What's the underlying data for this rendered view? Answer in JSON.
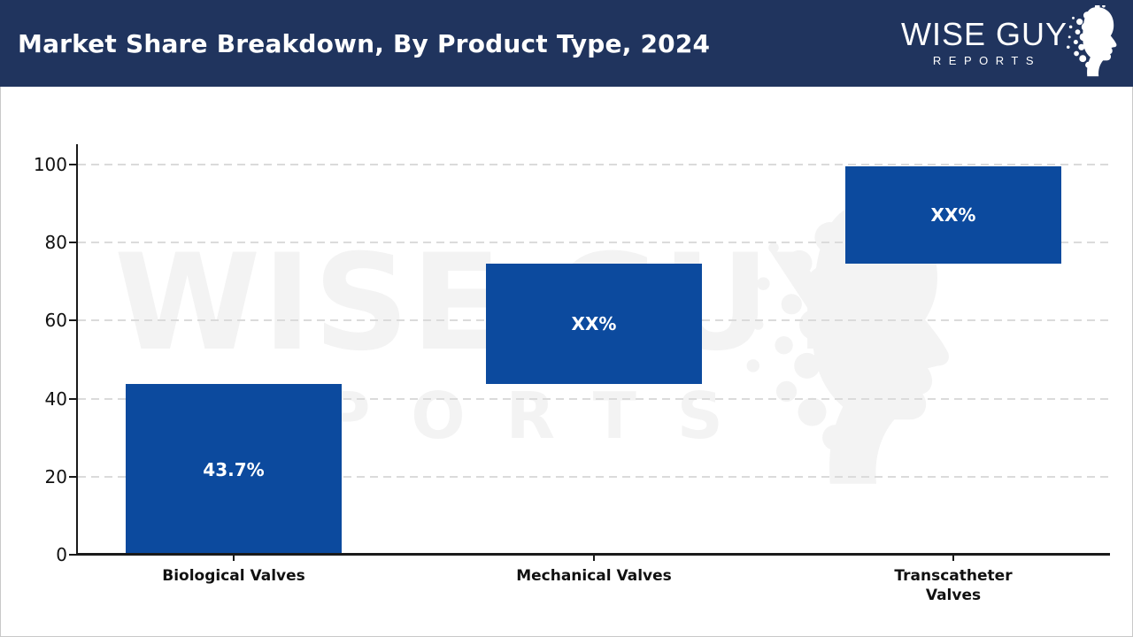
{
  "header": {
    "title": "Market Share Breakdown, By Product Type, 2024",
    "bg_color": "#20345E",
    "logo": {
      "line1": "WISE GUY",
      "line2": "REPORTS"
    }
  },
  "watermark": {
    "line1": "WISE GUY",
    "line2": "REPORTS",
    "color": "#f3f3f3"
  },
  "chart_data": {
    "type": "bar",
    "subtype": "floating-segment-waterfall",
    "title": "Market Share Breakdown, By Product Type, 2024",
    "categories": [
      "Biological Valves",
      "Mechanical Valves",
      "Transcatheter Valves"
    ],
    "xtick_labels": [
      "Biological Valves",
      "Mechanical Valves",
      "Transcatheter\nValves"
    ],
    "series": [
      {
        "name": "Market share (%)",
        "segments": [
          {
            "category": "Biological Valves",
            "start": 0,
            "end": 43.7,
            "label": "43.7%"
          },
          {
            "category": "Mechanical Valves",
            "start": 43.7,
            "end": 74.7,
            "label": "XX%"
          },
          {
            "category": "Transcatheter Valves",
            "start": 74.7,
            "end": 99.5,
            "label": "XX%"
          }
        ]
      }
    ],
    "ylim": [
      0,
      100
    ],
    "yticks": [
      0,
      20,
      40,
      60,
      80,
      100
    ],
    "grid": "horizontal-dashed",
    "grid_color": "#dbdbdb",
    "axis_color": "#1a1a1a",
    "bar_color": "#0C4A9E",
    "label_color_inside_bar": "#ffffff",
    "legend": "none"
  }
}
